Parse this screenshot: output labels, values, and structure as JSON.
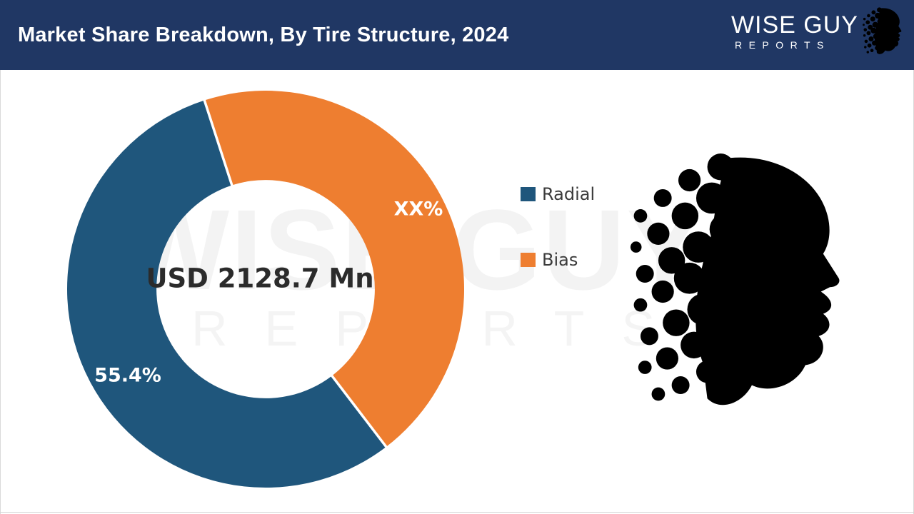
{
  "header": {
    "title": "Market Share Breakdown, By Tire Structure, 2024",
    "bg_color": "#203764",
    "logo": {
      "line1": "WISE GUY",
      "line2": "REPORTS"
    }
  },
  "watermark": {
    "line1": "WISE GUY",
    "line2": "REPORTS"
  },
  "chart_data": {
    "type": "pie",
    "subtype": "donut",
    "title": "Market Share Breakdown, By Tire Structure, 2024",
    "categories": [
      "Radial",
      "Bias"
    ],
    "values": [
      55.4,
      44.6
    ],
    "slice_labels": [
      "55.4%",
      "XX%"
    ],
    "center_label": "USD 2128.7 Mn",
    "colors": [
      "#1f567c",
      "#ee7e30"
    ],
    "hole_ratio": 0.55,
    "start_angle_deg": 142.6,
    "legend_position": "right",
    "legend_labels": [
      "Radial",
      "Bias"
    ]
  }
}
